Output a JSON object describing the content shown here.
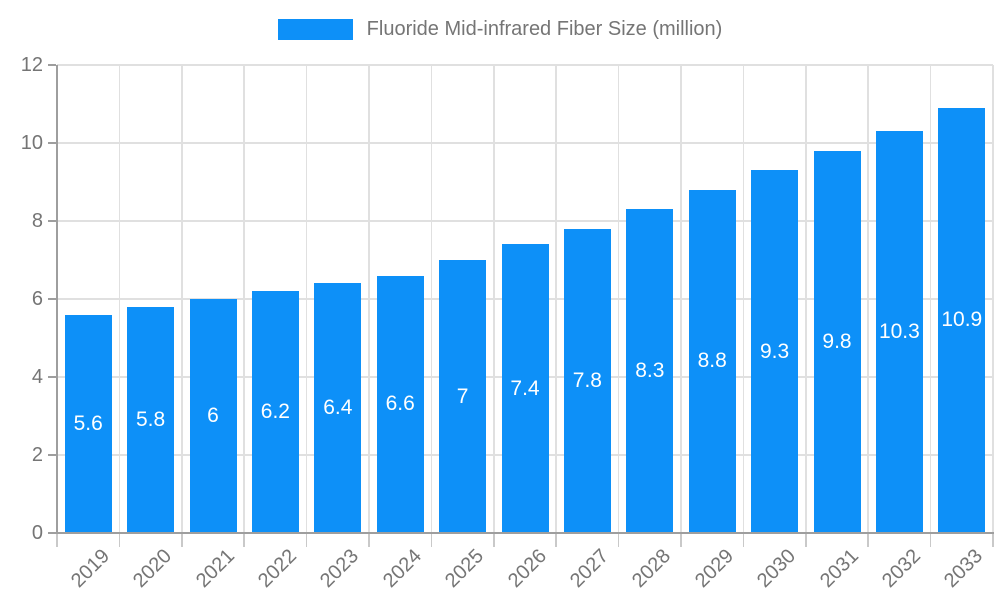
{
  "legend": {
    "label": "Fluoride Mid-infrared Fiber Size (million)"
  },
  "chart_data": {
    "type": "bar",
    "title": "Fluoride Mid-infrared Fiber Size (million)",
    "categories": [
      "2019",
      "2020",
      "2021",
      "2022",
      "2023",
      "2024",
      "2025",
      "2026",
      "2027",
      "2028",
      "2029",
      "2030",
      "2031",
      "2032",
      "2033"
    ],
    "series": [
      {
        "name": "Fluoride Mid-infrared Fiber Size (million)",
        "values": [
          5.6,
          5.8,
          6,
          6.2,
          6.4,
          6.6,
          7,
          7.4,
          7.8,
          8.3,
          8.8,
          9.3,
          9.8,
          10.3,
          10.9
        ]
      }
    ],
    "xlabel": "",
    "ylabel": "",
    "ylim": [
      0,
      12
    ],
    "yticks": [
      0,
      2,
      4,
      6,
      8,
      10,
      12
    ],
    "grid": true,
    "legend_position": "top-center",
    "value_labels": "inside-vertical-center",
    "x_tick_rotation_deg": -45
  },
  "colors": {
    "bar": "#0d90f8",
    "grid": "#e0e0e0",
    "axis": "#9e9e9e",
    "x_tick": "#c9c9c9",
    "text": "#757575",
    "value_label": "#ffffff"
  }
}
